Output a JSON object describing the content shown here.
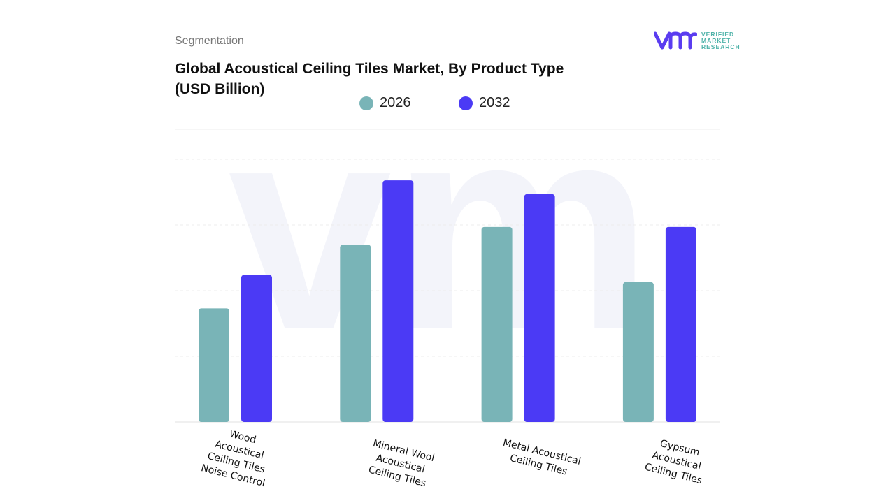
{
  "header": {
    "segment_label": "Segmentation",
    "title": "Global Acoustical Ceiling Tiles Market, By Product Type (USD Billion)"
  },
  "logo": {
    "text_lines": [
      "VERIFIED",
      "MARKET",
      "RESEARCH"
    ],
    "mark": "vmr"
  },
  "colors": {
    "series_2026": "#79b4b7",
    "series_2032": "#4b3af5",
    "grid": "#e6e6e6",
    "watermark": "#f1f2f8"
  },
  "chart_data": {
    "type": "bar",
    "title": "Global Acoustical Ceiling Tiles Market, By Product Type (USD Billion)",
    "categories": [
      "Wood Acoustical Ceiling Tiles Noise Control",
      "Mineral Wool Acoustical Ceiling Tiles",
      "Metal Acoustical Ceiling Tiles",
      "Gypsum Acoustical Ceiling Tiles"
    ],
    "series": [
      {
        "name": "2026",
        "values": [
          1.73,
          2.7,
          2.97,
          2.13
        ]
      },
      {
        "name": "2032",
        "values": [
          2.24,
          3.68,
          3.47,
          2.97
        ]
      }
    ],
    "ylim": [
      0,
      4
    ],
    "grid": true,
    "legend": "top-center",
    "xlabel": "",
    "ylabel": ""
  }
}
